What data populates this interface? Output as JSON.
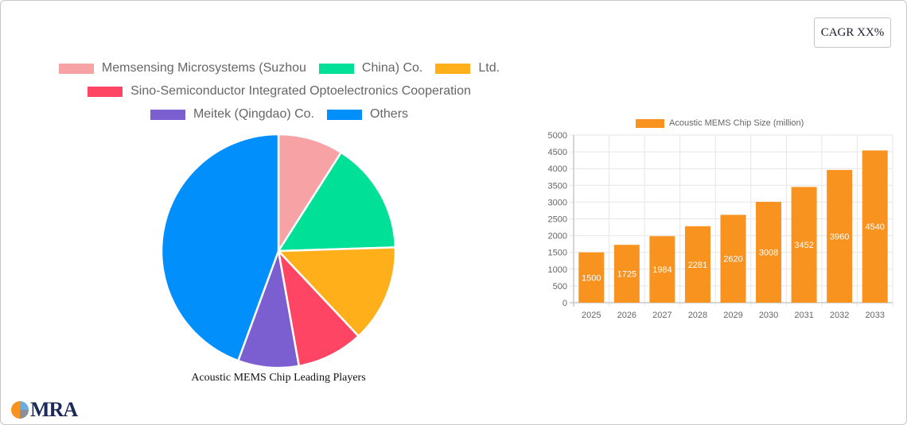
{
  "badge": {
    "label": "CAGR XX%"
  },
  "pie_legend": [
    {
      "label": "Memsensing Microsystems (Suzhou",
      "color": "#f7a3a6"
    },
    {
      "label": "China) Co.",
      "color": "#00e096"
    },
    {
      "label": "Ltd.",
      "color": "#ffaf1a"
    },
    {
      "label": "Sino-Semiconductor Integrated Optoelectronics Cooperation",
      "color": "#ff4564"
    },
    {
      "label": "Meitek (Qingdao) Co.",
      "color": "#7b5ecf"
    },
    {
      "label": "Others",
      "color": "#008ffb"
    }
  ],
  "bar_legend": {
    "label": "Acoustic MEMS Chip Size (million)",
    "color": "#f7931e"
  },
  "logo": {
    "text": "MRA"
  },
  "chart_data": [
    {
      "type": "pie",
      "title": "Acoustic MEMS Chip Leading Players",
      "legend_position": "top",
      "categories": [
        "Memsensing Microsystems (Suzhou",
        "China) Co.",
        "Ltd.",
        "Sino-Semiconductor Integrated Optoelectronics Cooperation",
        "Meitek (Qingdao) Co.",
        "Others"
      ],
      "values": [
        9,
        15.5,
        13.5,
        9.2,
        8.4,
        44.4
      ],
      "colors": [
        "#f7a3a6",
        "#00e096",
        "#ffaf1a",
        "#ff4564",
        "#7b5ecf",
        "#008ffb"
      ]
    },
    {
      "type": "bar",
      "title": "",
      "legend": [
        "Acoustic MEMS Chip Size (million)"
      ],
      "legend_position": "top",
      "categories": [
        "2025",
        "2026",
        "2027",
        "2028",
        "2029",
        "2030",
        "2031",
        "2032",
        "2033"
      ],
      "series": [
        {
          "name": "Acoustic MEMS Chip Size (million)",
          "values": [
            1500,
            1725,
            1984,
            2281,
            2620,
            3008,
            3452,
            3960,
            4540
          ],
          "color": "#f7931e"
        }
      ],
      "xlabel": "",
      "ylabel": "",
      "ylim": [
        0,
        5000
      ],
      "yticks": [
        0,
        500,
        1000,
        1500,
        2000,
        2500,
        3000,
        3500,
        4000,
        4500,
        5000
      ],
      "grid": true,
      "data_labels": true
    }
  ]
}
